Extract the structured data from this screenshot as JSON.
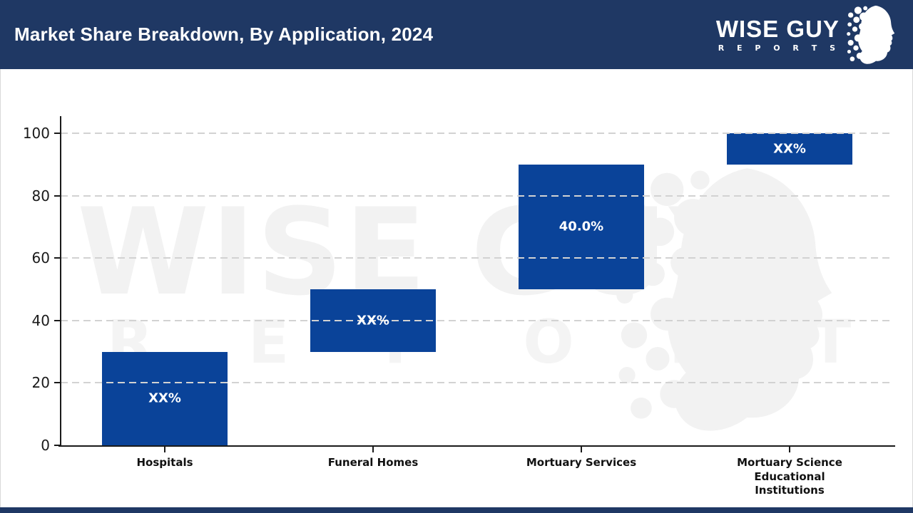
{
  "header": {
    "title": "Market Share Breakdown, By Application, 2024",
    "logo": {
      "line1": "WISE GUY",
      "line2": "R E P O R T S"
    }
  },
  "watermark": {
    "line1": "WISE GUY",
    "line2": "REPORTS"
  },
  "colors": {
    "header_bg": "#1f3864",
    "footer_bg": "#1f3864",
    "bar": "#0a4399",
    "bar_label": "#ffffff",
    "axis": "#1a1a1a",
    "grid": "#d2d2d2",
    "watermark": "#f2f2f2",
    "title_text": "#ffffff"
  },
  "chart_data": {
    "type": "bar",
    "subtype": "floating-waterfall",
    "title": "Market Share Breakdown, By Application, 2024",
    "categories": [
      "Hospitals",
      "Funeral Homes",
      "Mortuary Services",
      "Mortuary Science Educational Institutions"
    ],
    "category_label_lines": [
      [
        "Hospitals"
      ],
      [
        "Funeral Homes"
      ],
      [
        "Mortuary Services"
      ],
      [
        "Mortuary Science",
        "Educational",
        "Institutions"
      ]
    ],
    "segments": [
      {
        "category": "Hospitals",
        "from": 0,
        "to": 30,
        "label": "XX%"
      },
      {
        "category": "Funeral Homes",
        "from": 30,
        "to": 50,
        "label": "XX%"
      },
      {
        "category": "Mortuary Services",
        "from": 50,
        "to": 90,
        "label": "40.0%"
      },
      {
        "category": "Mortuary Science Educational Institutions",
        "from": 90,
        "to": 100,
        "label": "XX%"
      }
    ],
    "yticks": [
      0,
      20,
      40,
      60,
      80,
      100
    ],
    "ylim": [
      0,
      100
    ],
    "xlabel": "",
    "ylabel": "",
    "grid": "dashed-horizontal",
    "legend": false
  }
}
